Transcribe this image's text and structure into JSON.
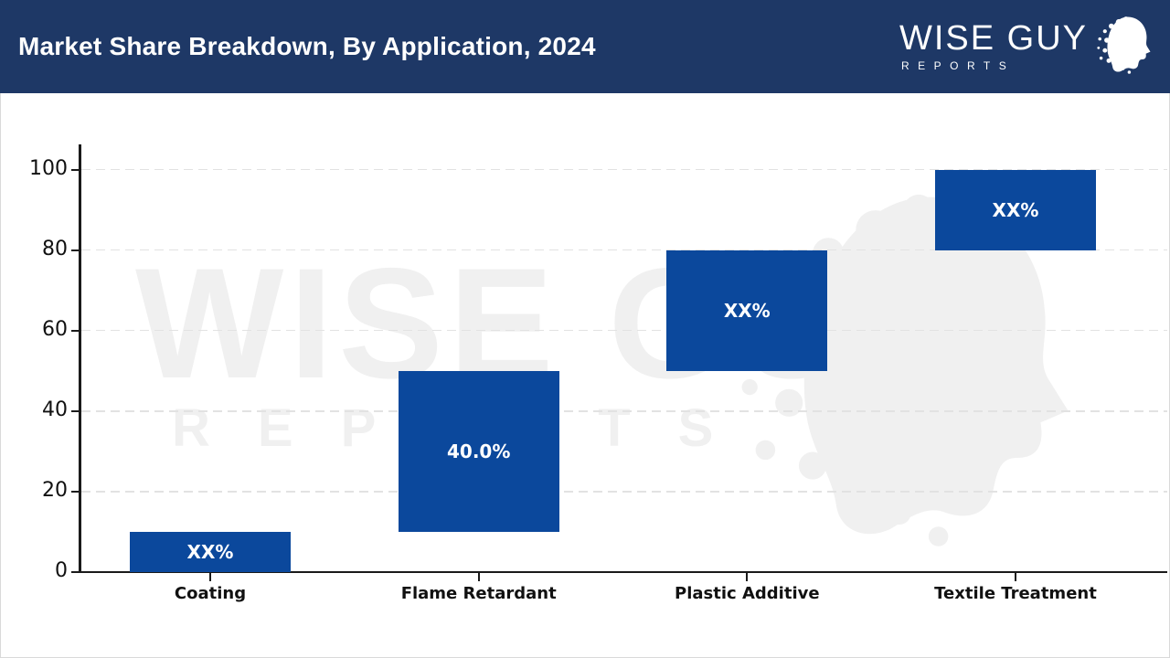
{
  "header": {
    "title": "Market Share Breakdown, By Application, 2024",
    "bg_color": "#1e3866",
    "logo": {
      "line1": "WISE GUY",
      "line2": "REPORTS"
    }
  },
  "watermark": {
    "line1": "WISE GUY",
    "line2": "REPORTS",
    "color": "#f0f0f0"
  },
  "chart_data": {
    "type": "bar",
    "subtype": "floating-waterfall",
    "title": "Market Share Breakdown, By Application, 2024",
    "categories": [
      "Coating",
      "Flame Retardant",
      "Plastic Additive",
      "Textile Treatment"
    ],
    "segments": [
      {
        "category": "Coating",
        "start": 0,
        "end": 10,
        "label": "XX%"
      },
      {
        "category": "Flame Retardant",
        "start": 10,
        "end": 50,
        "label": "40.0%"
      },
      {
        "category": "Plastic Additive",
        "start": 50,
        "end": 80,
        "label": "XX%"
      },
      {
        "category": "Textile Treatment",
        "start": 80,
        "end": 100,
        "label": "XX%"
      }
    ],
    "y_ticks": [
      0,
      20,
      40,
      60,
      80,
      100
    ],
    "ylim": [
      0,
      105
    ],
    "xlabel": "",
    "ylabel": "",
    "bar_color": "#0b489c",
    "grid": "horizontal-dashed",
    "grid_color": "#e2e2e2",
    "legend": "none"
  }
}
